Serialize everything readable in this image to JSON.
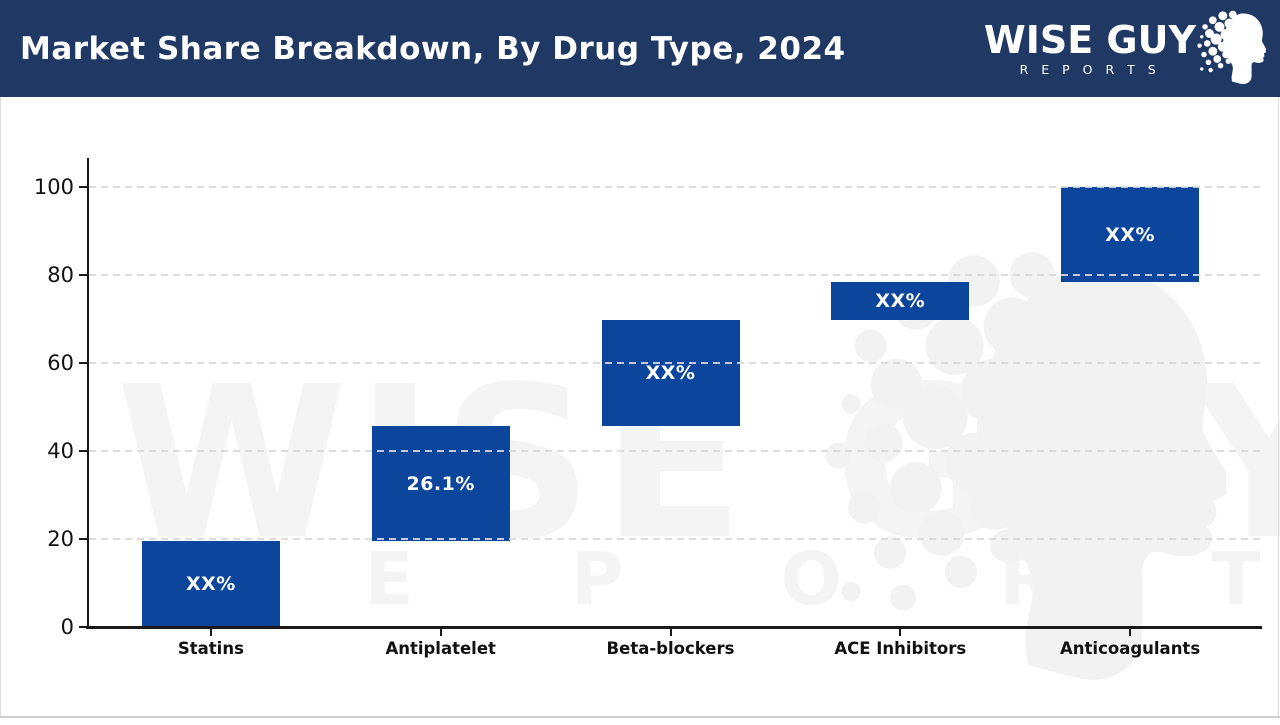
{
  "header": {
    "title": "Market Share Breakdown, By Drug Type, 2024",
    "logo": {
      "line1": "WISE GUY",
      "line2": "R E P O R T S"
    }
  },
  "watermark": {
    "line1": "WISE GUY",
    "line2": "R E P O R T S"
  },
  "colors": {
    "header_bg": "#203864",
    "bar_blue": "#0b459c",
    "gridline": "#d9d9d9",
    "axis": "#1a1a1a",
    "watermark_gray": "#f4f4f4"
  },
  "chart_data": {
    "type": "bar",
    "subtype": "waterfall",
    "title": "Market Share Breakdown, By Drug Type, 2024",
    "xlabel": "",
    "ylabel": "",
    "ylim": [
      0,
      105
    ],
    "yticks": [
      0,
      20,
      40,
      60,
      80,
      100
    ],
    "grid": "horizontal-dashed",
    "legend": "none",
    "categories": [
      "Statins",
      "Antiplatelet",
      "Beta-blockers",
      "ACE Inhibitors",
      "Anticoagulants"
    ],
    "bars": [
      {
        "category": "Statins",
        "start": 0,
        "end": 19.5,
        "value_label": "XX%"
      },
      {
        "category": "Antiplatelet",
        "start": 19.5,
        "end": 45.6,
        "value_label": "26.1%"
      },
      {
        "category": "Beta-blockers",
        "start": 45.6,
        "end": 69.8,
        "value_label": "XX%"
      },
      {
        "category": "ACE Inhibitors",
        "start": 69.8,
        "end": 78.4,
        "value_label": "XX%"
      },
      {
        "category": "Anticoagulants",
        "start": 78.4,
        "end": 100,
        "value_label": "XX%"
      }
    ]
  }
}
